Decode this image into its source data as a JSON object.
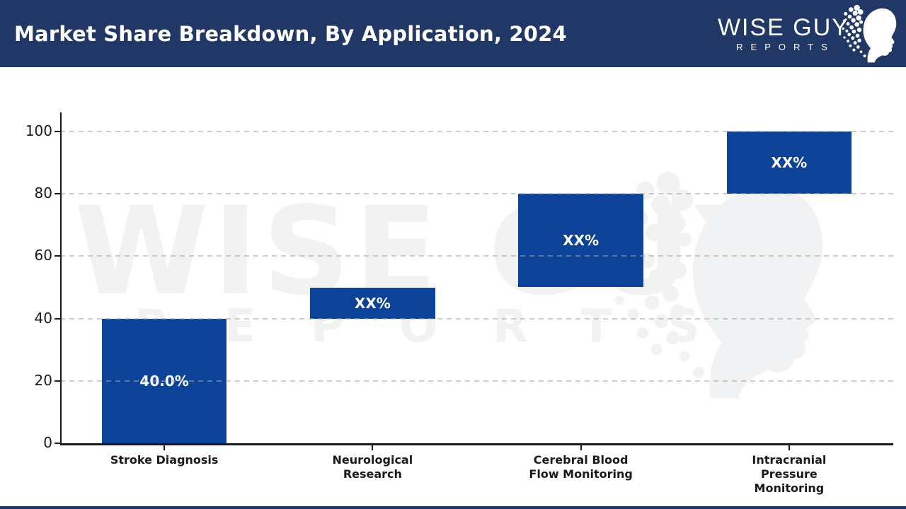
{
  "header": {
    "title": "Market Share Breakdown, By Application, 2024",
    "logo": {
      "line1": "WISE GUY",
      "line2": "REPORTS"
    }
  },
  "watermark": {
    "line1": "WISE GUY",
    "line2": "REPORTS"
  },
  "chart_data": {
    "type": "bar",
    "subtype": "waterfall",
    "title": "Market Share Breakdown, By Application, 2024",
    "categories": [
      "Stroke Diagnosis",
      "Neurological Research",
      "Cerebral Blood Flow Monitoring",
      "Intracranial Pressure Monitoring"
    ],
    "segments": [
      {
        "label_lines": [
          "Stroke Diagnosis"
        ],
        "start": 0,
        "end": 40,
        "value_label": "40.0%"
      },
      {
        "label_lines": [
          "Neurological",
          "Research"
        ],
        "start": 40,
        "end": 50,
        "value_label": "XX%"
      },
      {
        "label_lines": [
          "Cerebral Blood",
          "Flow Monitoring"
        ],
        "start": 50,
        "end": 80,
        "value_label": "XX%"
      },
      {
        "label_lines": [
          "Intracranial",
          "Pressure",
          "Monitoring"
        ],
        "start": 80,
        "end": 100,
        "value_label": "XX%"
      }
    ],
    "yticks": [
      0,
      20,
      40,
      60,
      80,
      100
    ],
    "ylim": [
      0,
      106
    ],
    "xlabel": "",
    "ylabel": "",
    "grid": "horizontal-dashed-over-bars",
    "legend": "none",
    "bar_color": "#0d4299",
    "bar_label_color": "#ffffff",
    "header_color": "#213866"
  }
}
